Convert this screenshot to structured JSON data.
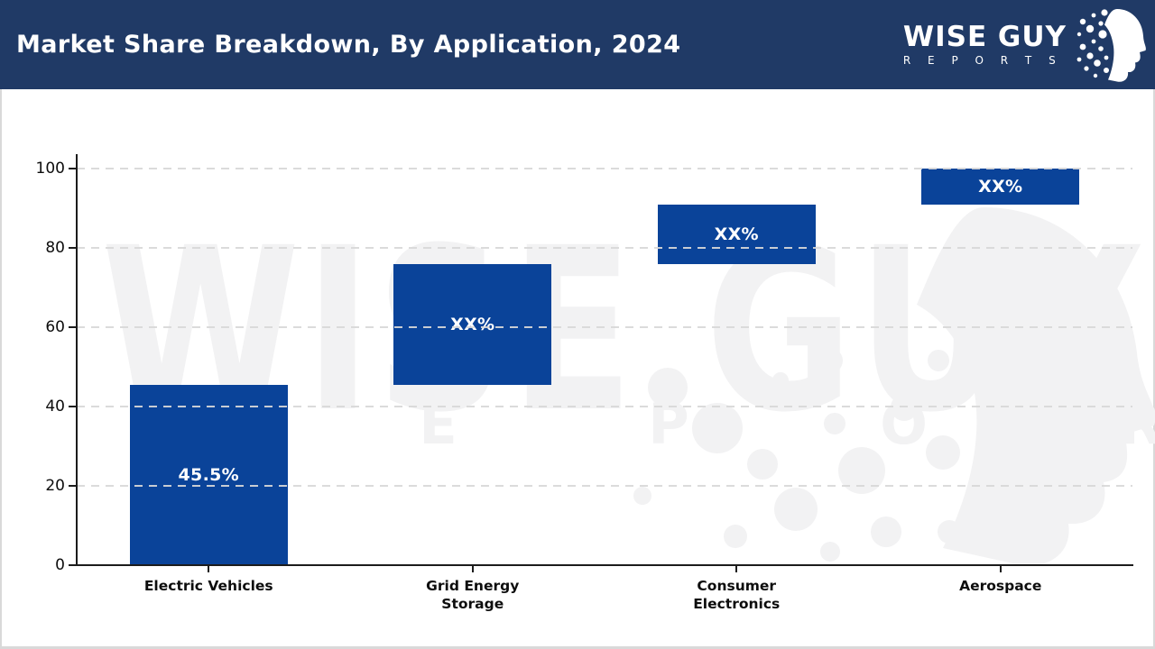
{
  "header": {
    "title": "Market Share Breakdown, By Application, 2024",
    "bg_color": "#203a66",
    "logo": {
      "line1": "WISE GUY",
      "line2": "R E P O R T S"
    }
  },
  "watermark": {
    "line1": "WISE GUY",
    "line2": "R E P O R T S"
  },
  "chart_data": {
    "type": "bar",
    "subtype": "waterfall-style floating segment bars (cumulative market share)",
    "title": "Market Share Breakdown, By Application, 2024",
    "categories": [
      [
        "Electric Vehicles"
      ],
      [
        "Grid Energy",
        "Storage"
      ],
      [
        "Consumer",
        "Electronics"
      ],
      [
        "Aerospace"
      ]
    ],
    "segments": [
      {
        "name": "Electric Vehicles",
        "start": 0,
        "end": 45.5,
        "label": "45.5%"
      },
      {
        "name": "Grid Energy Storage",
        "start": 45.5,
        "end": 76,
        "label": "XX%"
      },
      {
        "name": "Consumer Electronics",
        "start": 76,
        "end": 91,
        "label": "XX%"
      },
      {
        "name": "Aerospace",
        "start": 91,
        "end": 100,
        "label": "XX%"
      }
    ],
    "ylim": [
      0,
      100
    ],
    "y_ticks": [
      0,
      20,
      40,
      60,
      80,
      100
    ],
    "xlabel": "",
    "ylabel": "",
    "grid": "horizontal dashed, light gray, drawn over bars",
    "legend": "none",
    "bar_color": "#0a4399",
    "bar_label_color": "#ffffff",
    "grid_color": "#d8d8d8",
    "axis_color": "#1c1c1c"
  }
}
